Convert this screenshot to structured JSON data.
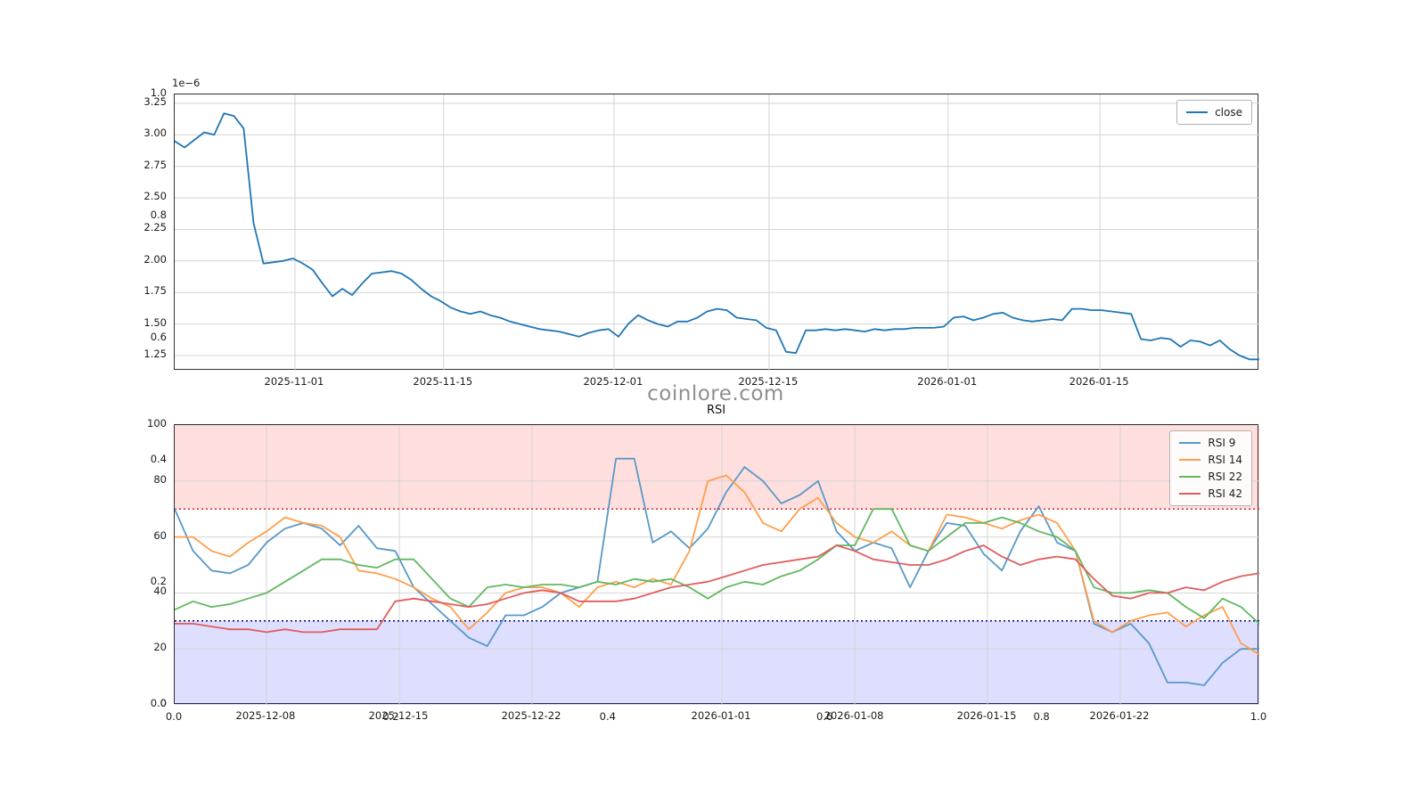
{
  "watermark": "coinlore.com",
  "overlay_axis": {
    "x_labels": [
      "0.0",
      "0.2",
      "0.4",
      "0.6",
      "0.8",
      "1.0"
    ],
    "y_labels": [
      "1.0",
      "0.8",
      "0.6",
      "0.4",
      "0.2",
      "0.0"
    ]
  },
  "chart_data": [
    {
      "type": "line",
      "title": "",
      "offset_text": "1e−6",
      "xlabel": "",
      "ylabel": "",
      "grid": true,
      "ylim": [
        1.13,
        3.32
      ],
      "y_ticks": [
        {
          "v": 1.25,
          "label": "1.25"
        },
        {
          "v": 1.5,
          "label": "1.50"
        },
        {
          "v": 1.75,
          "label": "1.75"
        },
        {
          "v": 2.0,
          "label": "2.00"
        },
        {
          "v": 2.25,
          "label": "2.25"
        },
        {
          "v": 2.5,
          "label": "2.50"
        },
        {
          "v": 2.75,
          "label": "2.75"
        },
        {
          "v": 3.0,
          "label": "3.00"
        },
        {
          "v": 3.25,
          "label": "3.25"
        }
      ],
      "x_ticks": [
        {
          "pos": 0.1109,
          "label": "2025-11-01"
        },
        {
          "pos": 0.248,
          "label": "2025-11-15"
        },
        {
          "pos": 0.405,
          "label": "2025-12-01"
        },
        {
          "pos": 0.548,
          "label": "2025-12-15"
        },
        {
          "pos": 0.713,
          "label": "2026-01-01"
        },
        {
          "pos": 0.853,
          "label": "2026-01-15"
        }
      ],
      "legend_position": "top-right",
      "series": [
        {
          "name": "close",
          "color": "#1f77b4",
          "values": [
            2.95,
            2.9,
            2.96,
            3.02,
            3.0,
            3.17,
            3.15,
            3.05,
            2.3,
            1.98,
            1.99,
            2.0,
            2.02,
            1.98,
            1.93,
            1.82,
            1.72,
            1.78,
            1.73,
            1.82,
            1.9,
            1.91,
            1.92,
            1.9,
            1.85,
            1.78,
            1.72,
            1.68,
            1.63,
            1.6,
            1.58,
            1.6,
            1.57,
            1.55,
            1.52,
            1.5,
            1.48,
            1.46,
            1.45,
            1.44,
            1.42,
            1.4,
            1.43,
            1.45,
            1.46,
            1.4,
            1.5,
            1.57,
            1.53,
            1.5,
            1.48,
            1.52,
            1.52,
            1.55,
            1.6,
            1.62,
            1.61,
            1.55,
            1.54,
            1.53,
            1.47,
            1.45,
            1.28,
            1.27,
            1.45,
            1.45,
            1.46,
            1.45,
            1.46,
            1.45,
            1.44,
            1.46,
            1.45,
            1.46,
            1.46,
            1.47,
            1.47,
            1.47,
            1.48,
            1.55,
            1.56,
            1.53,
            1.55,
            1.58,
            1.59,
            1.55,
            1.53,
            1.52,
            1.53,
            1.54,
            1.53,
            1.62,
            1.62,
            1.61,
            1.61,
            1.6,
            1.59,
            1.58,
            1.38,
            1.37,
            1.39,
            1.38,
            1.32,
            1.37,
            1.36,
            1.33,
            1.37,
            1.3,
            1.25,
            1.22,
            1.22
          ]
        }
      ]
    },
    {
      "type": "line",
      "title": "RSI",
      "xlabel": "",
      "ylabel": "",
      "grid": true,
      "ylim": [
        0,
        100
      ],
      "y_ticks": [
        {
          "v": 0,
          "label": "0"
        },
        {
          "v": 20,
          "label": "20"
        },
        {
          "v": 40,
          "label": "40"
        },
        {
          "v": 60,
          "label": "60"
        },
        {
          "v": 80,
          "label": "80"
        },
        {
          "v": 100,
          "label": "100"
        }
      ],
      "x_ticks": [
        {
          "pos": 0.0846,
          "label": "2025-12-08"
        },
        {
          "pos": 0.2071,
          "label": "2025-12-15"
        },
        {
          "pos": 0.3295,
          "label": "2025-12-22"
        },
        {
          "pos": 0.5045,
          "label": "2026-01-01"
        },
        {
          "pos": 0.627,
          "label": "2026-01-08"
        },
        {
          "pos": 0.7494,
          "label": "2026-01-15"
        },
        {
          "pos": 0.8718,
          "label": "2026-01-22"
        }
      ],
      "bands": [
        {
          "name": "overbought-band",
          "from": 70,
          "to": 100,
          "color": "rgba(255,0,0,0.13)"
        },
        {
          "name": "oversold-band",
          "from": 0,
          "to": 30,
          "color": "rgba(0,0,255,0.13)"
        }
      ],
      "hlines": [
        {
          "name": "overbought-threshold-line",
          "y": 70,
          "color": "#d62728"
        },
        {
          "name": "oversold-threshold-line",
          "y": 30,
          "color": "#00008b"
        }
      ],
      "legend_position": "top-right",
      "series": [
        {
          "name": "RSI 9",
          "color": "#5799c7",
          "values": [
            70,
            55,
            48,
            47,
            50,
            58,
            63,
            65,
            63,
            57,
            64,
            56,
            55,
            42,
            36,
            30,
            24,
            21,
            32,
            32,
            35,
            40,
            42,
            44,
            88,
            88,
            58,
            62,
            56,
            63,
            76,
            85,
            80,
            72,
            75,
            80,
            62,
            55,
            58,
            56,
            42,
            55,
            65,
            64,
            54,
            48,
            62,
            71,
            58,
            55,
            29,
            26,
            29,
            22,
            8,
            8,
            7,
            15,
            20,
            20
          ]
        },
        {
          "name": "RSI 14",
          "color": "#ff9f4b",
          "values": [
            60,
            60,
            55,
            53,
            58,
            62,
            67,
            65,
            64,
            60,
            48,
            47,
            45,
            42,
            38,
            35,
            27,
            33,
            40,
            42,
            42,
            40,
            35,
            42,
            44,
            42,
            45,
            43,
            55,
            80,
            82,
            76,
            65,
            62,
            70,
            74,
            65,
            60,
            58,
            62,
            57,
            55,
            68,
            67,
            65,
            63,
            66,
            68,
            65,
            55,
            30,
            26,
            30,
            32,
            33,
            28,
            32,
            35,
            22,
            18
          ]
        },
        {
          "name": "RSI 22",
          "color": "#61b861",
          "values": [
            34,
            37,
            35,
            36,
            38,
            40,
            44,
            48,
            52,
            52,
            50,
            49,
            52,
            52,
            45,
            38,
            35,
            42,
            43,
            42,
            43,
            43,
            42,
            44,
            43,
            45,
            44,
            45,
            42,
            38,
            42,
            44,
            43,
            46,
            48,
            52,
            57,
            57,
            70,
            70,
            57,
            55,
            60,
            65,
            65,
            67,
            65,
            62,
            60,
            55,
            42,
            40,
            40,
            41,
            40,
            35,
            31,
            38,
            35,
            29
          ]
        },
        {
          "name": "RSI 42",
          "color": "#e05d5e",
          "values": [
            29,
            29,
            28,
            27,
            27,
            26,
            27,
            26,
            26,
            27,
            27,
            27,
            37,
            38,
            37,
            36,
            35,
            36,
            38,
            40,
            41,
            40,
            37,
            37,
            37,
            38,
            40,
            42,
            43,
            44,
            46,
            48,
            50,
            51,
            52,
            53,
            57,
            55,
            52,
            51,
            50,
            50,
            52,
            55,
            57,
            53,
            50,
            52,
            53,
            52,
            45,
            39,
            38,
            40,
            40,
            42,
            41,
            44,
            46,
            47
          ]
        }
      ]
    }
  ]
}
